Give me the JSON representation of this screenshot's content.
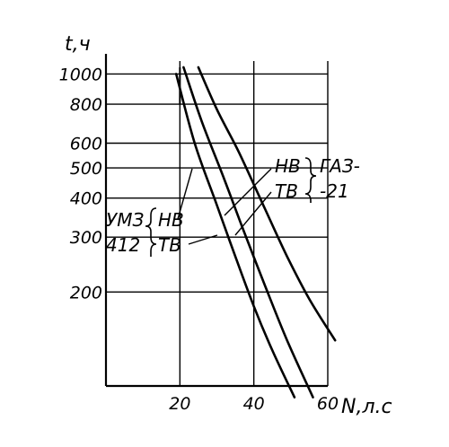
{
  "chart_data": {
    "type": "line",
    "title": "",
    "xlabel": "N,л.с",
    "ylabel": "t,ч",
    "x_scale": "linear",
    "y_scale": "log",
    "xlim": [
      0,
      60
    ],
    "ylim": [
      100,
      1100
    ],
    "x_ticks": [
      20,
      40,
      60
    ],
    "x_tick_labels": [
      "20",
      "40",
      "60"
    ],
    "y_ticks": [
      200,
      300,
      400,
      500,
      600,
      800,
      1000
    ],
    "y_tick_labels": [
      "200",
      "300",
      "400",
      "500",
      "600",
      "800",
      "1000"
    ],
    "grid": true,
    "series": [
      {
        "points": [
          [
            19,
            1000
          ],
          [
            24,
            600
          ],
          [
            30,
            380
          ],
          [
            35,
            260
          ],
          [
            40,
            180
          ],
          [
            45,
            130
          ],
          [
            51,
            92
          ]
        ]
      },
      {
        "points": [
          [
            21,
            1050
          ],
          [
            26,
            700
          ],
          [
            32,
            460
          ],
          [
            37,
            320
          ],
          [
            43,
            210
          ],
          [
            49,
            140
          ],
          [
            56,
            92
          ]
        ]
      },
      {
        "points": [
          [
            25,
            1050
          ],
          [
            30,
            770
          ],
          [
            36,
            560
          ],
          [
            43,
            370
          ],
          [
            49,
            260
          ],
          [
            55,
            190
          ],
          [
            62,
            140
          ]
        ]
      }
    ],
    "annotations": {
      "gaz_nv": "НВ",
      "gaz_tv": "ТВ",
      "gaz_model_1": "ГАЗ-",
      "gaz_model_2": "-21",
      "umz_model_1": "УМЗ",
      "umz_model_2": "412",
      "umz_nv": "НВ",
      "umz_tv": "ТВ"
    }
  }
}
